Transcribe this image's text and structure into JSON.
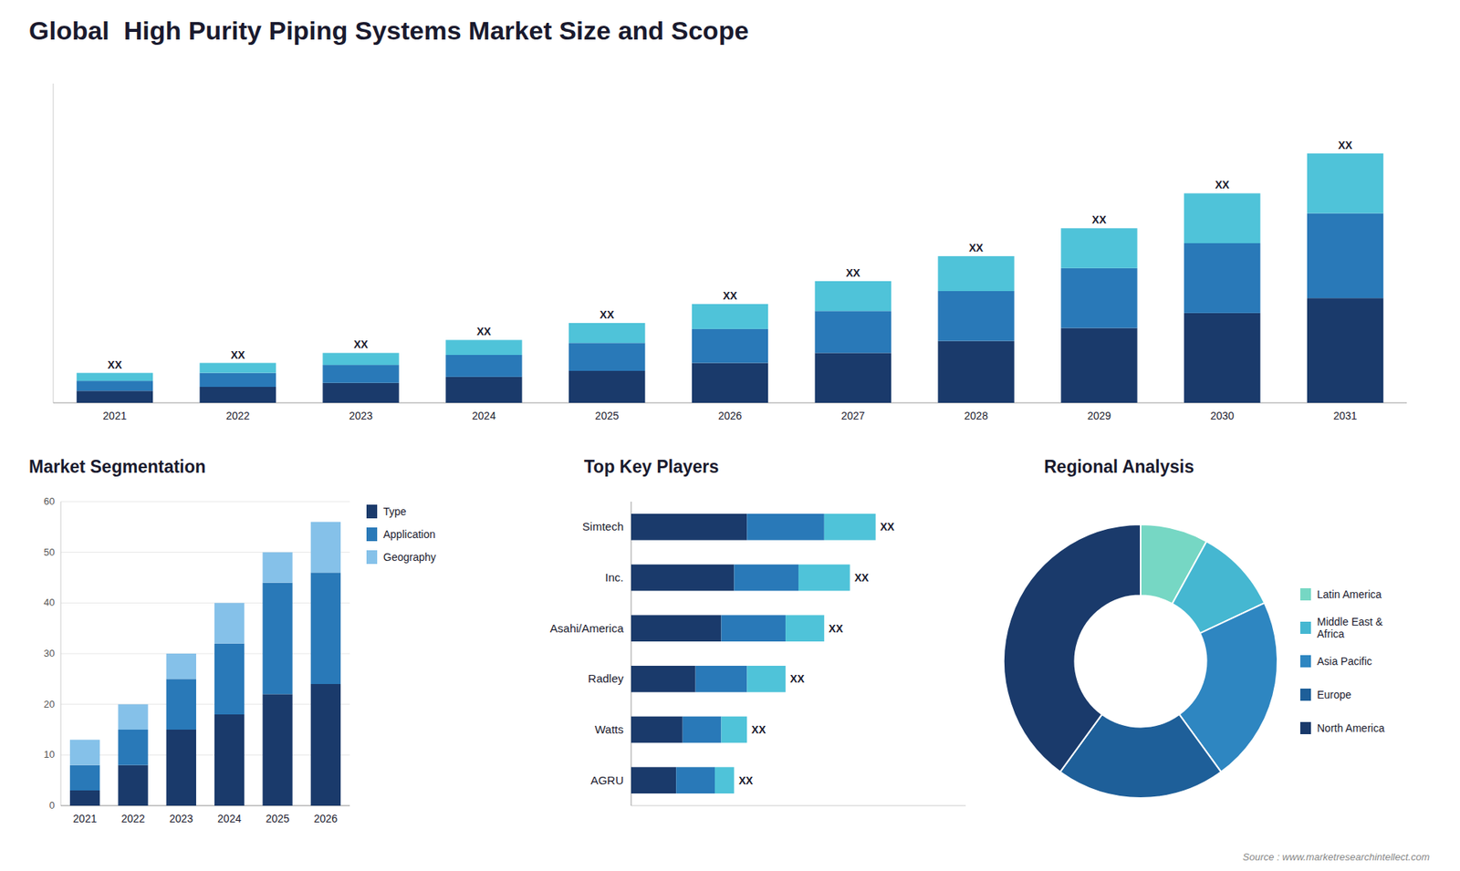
{
  "chart_data": [
    {
      "type": "bar",
      "title": "Global  High Purity Piping Systems Market Size and Scope",
      "categories": [
        "2021",
        "2022",
        "2023",
        "2024",
        "2025",
        "2026",
        "2027",
        "2028",
        "2029",
        "2030",
        "2031"
      ],
      "series": [
        {
          "color": "#1a3a6b",
          "values": [
            1.2,
            1.6,
            2.0,
            2.6,
            3.2,
            4.0,
            5.0,
            6.2,
            7.5,
            9.0,
            10.5
          ]
        },
        {
          "color": "#2979b8",
          "values": [
            1.0,
            1.4,
            1.8,
            2.2,
            2.8,
            3.4,
            4.2,
            5.0,
            6.0,
            7.0,
            8.5
          ]
        },
        {
          "color": "#4fc3d9",
          "values": [
            0.8,
            1.0,
            1.2,
            1.5,
            2.0,
            2.5,
            3.0,
            3.5,
            4.0,
            5.0,
            6.0
          ]
        }
      ],
      "stacked": true,
      "ylim": [
        0,
        32
      ],
      "tick_labels": "x",
      "grid": false,
      "annotations": [
        "XX",
        "XX",
        "XX",
        "XX",
        "XX",
        "XX",
        "XX",
        "XX",
        "XX",
        "XX",
        "XX"
      ]
    },
    {
      "type": "bar",
      "title": "Market Segmentation",
      "categories": [
        "2021",
        "2022",
        "2023",
        "2024",
        "2025",
        "2026"
      ],
      "series": [
        {
          "name": "Type",
          "color": "#1a3a6b",
          "values": [
            3,
            8,
            15,
            18,
            22,
            24
          ]
        },
        {
          "name": "Application",
          "color": "#2979b8",
          "values": [
            5,
            7,
            10,
            14,
            22,
            22
          ]
        },
        {
          "name": "Geography",
          "color": "#85c1e9",
          "values": [
            5,
            5,
            5,
            8,
            6,
            10
          ]
        }
      ],
      "stacked": true,
      "ylim": [
        0,
        60
      ],
      "yticks": [
        0,
        10,
        20,
        30,
        40,
        50,
        60
      ],
      "grid": true,
      "legend": "right"
    },
    {
      "type": "bar",
      "orientation": "horizontal",
      "title": "Top Key Players",
      "categories": [
        "Simtech",
        "Inc.",
        "Asahi/America",
        "Radley",
        "Watts",
        "AGRU"
      ],
      "series": [
        {
          "color": "#1a3a6b",
          "values": [
            9,
            8,
            7,
            5,
            4,
            3.5
          ]
        },
        {
          "color": "#2979b8",
          "values": [
            6,
            5,
            5,
            4,
            3,
            3.0
          ]
        },
        {
          "color": "#4fc3d9",
          "values": [
            4,
            4,
            3,
            3,
            2,
            1.5
          ]
        }
      ],
      "stacked": true,
      "xlim": [
        0,
        26
      ],
      "tick_labels": "y",
      "grid": false,
      "annotations": [
        "XX",
        "XX",
        "XX",
        "XX",
        "XX",
        "XX"
      ]
    },
    {
      "type": "donut",
      "title": "Regional Analysis",
      "categories": [
        "Latin America",
        "Middle East &\nAfrica",
        "Asia Pacific",
        "Europe",
        "North America"
      ],
      "values": [
        8,
        10,
        22,
        20,
        40
      ],
      "colors": [
        "#76d7c4",
        "#45b7d1",
        "#2e86c1",
        "#1e5f99",
        "#1a3a6b"
      ],
      "legend": "right",
      "annotations": [
        "Source : www.marketresearchintellect.com"
      ]
    }
  ]
}
